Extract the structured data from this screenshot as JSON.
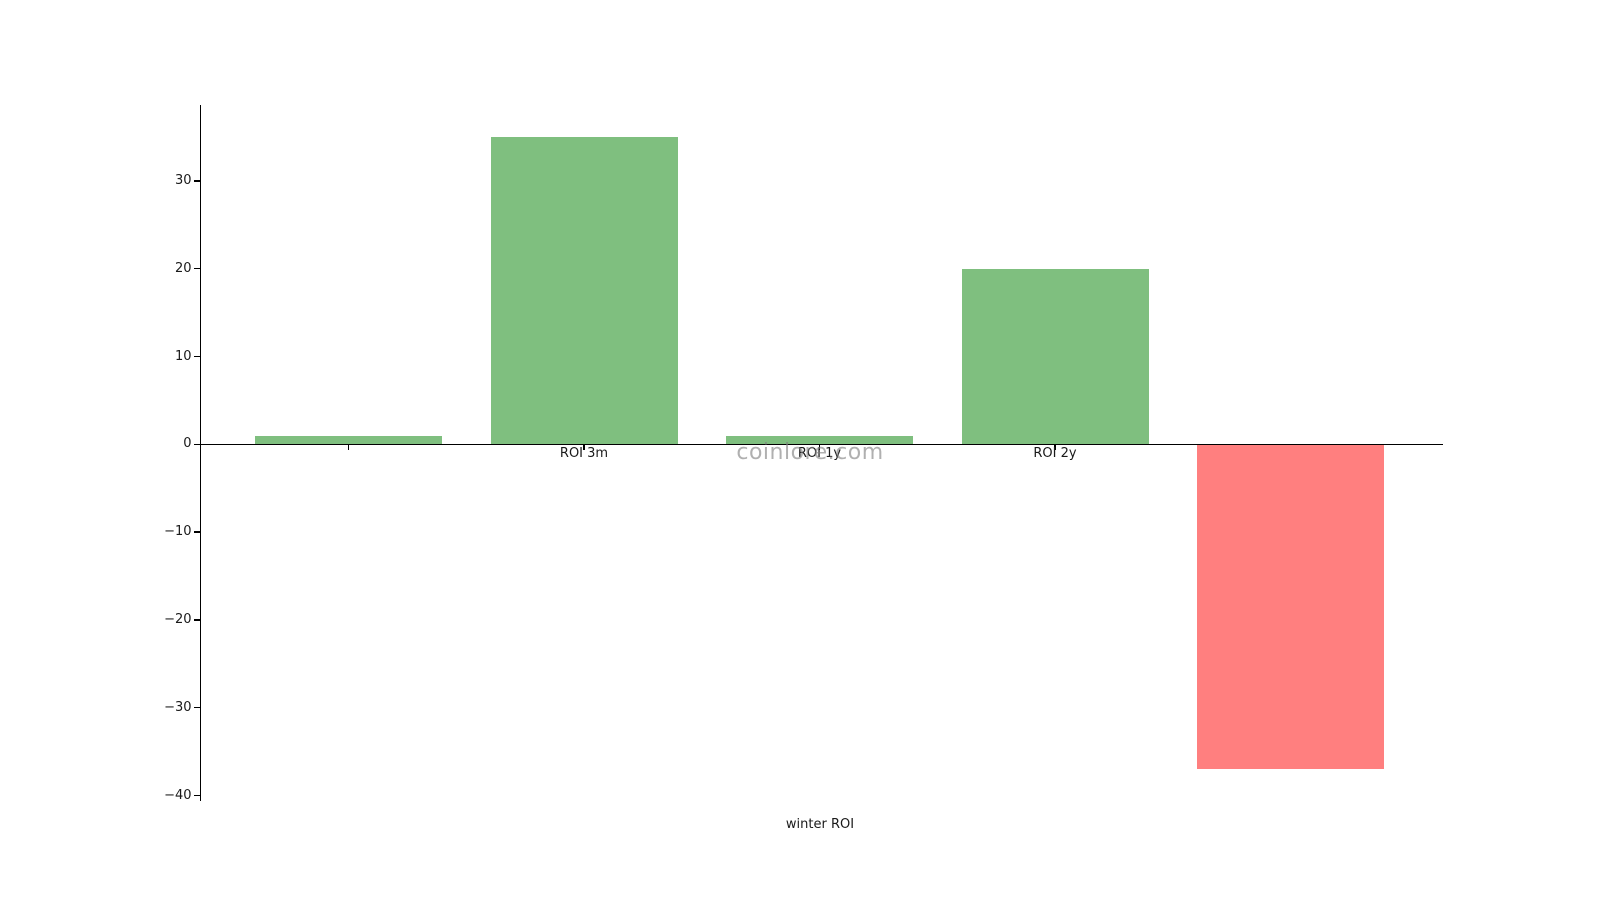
{
  "chart_data": {
    "type": "bar",
    "categories": [
      "",
      "ROI 3m",
      "ROI 1y",
      "ROI 2y",
      ""
    ],
    "values": [
      1,
      35,
      1,
      20,
      -37
    ],
    "series": [
      {
        "name": "winter ROI",
        "values": [
          1,
          35,
          1,
          20,
          -37
        ]
      }
    ],
    "title": "",
    "xlabel": "winter ROI",
    "ylabel": "",
    "yticks": [
      30,
      20,
      10,
      0,
      -10,
      -20,
      -30,
      -40
    ],
    "ylim": [
      -40.6,
      38.6
    ],
    "grid": false,
    "legend_position": "none",
    "watermark": "coinlore.com",
    "colors": {
      "positive_bar": "#7fbf7f",
      "negative_bar": "#ff7f7f",
      "axis": "#000000",
      "tick_text": "#1a1a1a",
      "watermark_text": "#808080"
    }
  }
}
